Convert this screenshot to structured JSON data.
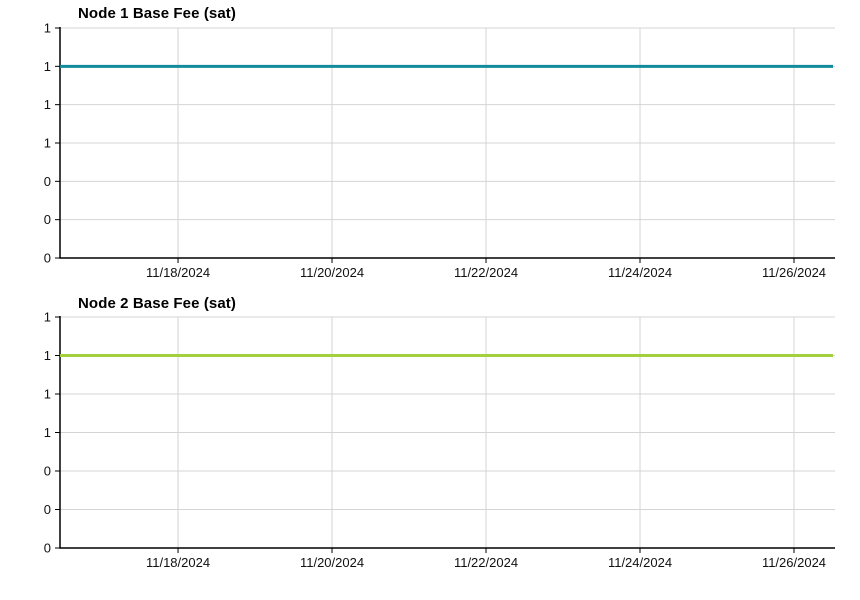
{
  "page": {
    "background_color": "#ffffff",
    "axis_color": "#000000",
    "grid_color": "#d4d4d4",
    "tick_label_color": "#111111"
  },
  "chart_data": [
    {
      "type": "line",
      "title": "Node 1 Base Fee (sat)",
      "xlabel": "",
      "ylabel": "",
      "x_ticks": [
        "11/18/2024",
        "11/20/2024",
        "11/22/2024",
        "11/24/2024",
        "11/26/2024"
      ],
      "x_range": [
        "11/16/2024 12:00",
        "11/26/2024 12:00"
      ],
      "y_ticks": [
        1.2,
        1.0,
        0.8,
        0.6,
        0.4,
        0.2,
        0.0
      ],
      "y_tick_labels": [
        "1",
        "1",
        "1",
        "1",
        "0",
        "0",
        "0"
      ],
      "ylim": [
        0,
        1.2
      ],
      "grid": true,
      "legend": false,
      "series": [
        {
          "name": "Node 1 base fee",
          "color": "#128c9c",
          "x": [
            "11/16/2024 12:00",
            "11/26/2024 12:00"
          ],
          "y": [
            1,
            1
          ],
          "constant_value": 1
        }
      ]
    },
    {
      "type": "line",
      "title": "Node 2 Base Fee (sat)",
      "xlabel": "",
      "ylabel": "",
      "x_ticks": [
        "11/18/2024",
        "11/20/2024",
        "11/22/2024",
        "11/24/2024",
        "11/26/2024"
      ],
      "x_range": [
        "11/16/2024 12:00",
        "11/26/2024 12:00"
      ],
      "y_ticks": [
        1.2,
        1.0,
        0.8,
        0.6,
        0.4,
        0.2,
        0.0
      ],
      "y_tick_labels": [
        "1",
        "1",
        "1",
        "1",
        "0",
        "0",
        "0"
      ],
      "ylim": [
        0,
        1.2
      ],
      "grid": true,
      "legend": false,
      "series": [
        {
          "name": "Node 2 base fee",
          "color": "#a3d13c",
          "x": [
            "11/16/2024 12:00",
            "11/26/2024 12:00"
          ],
          "y": [
            1,
            1
          ],
          "constant_value": 1
        }
      ]
    }
  ]
}
